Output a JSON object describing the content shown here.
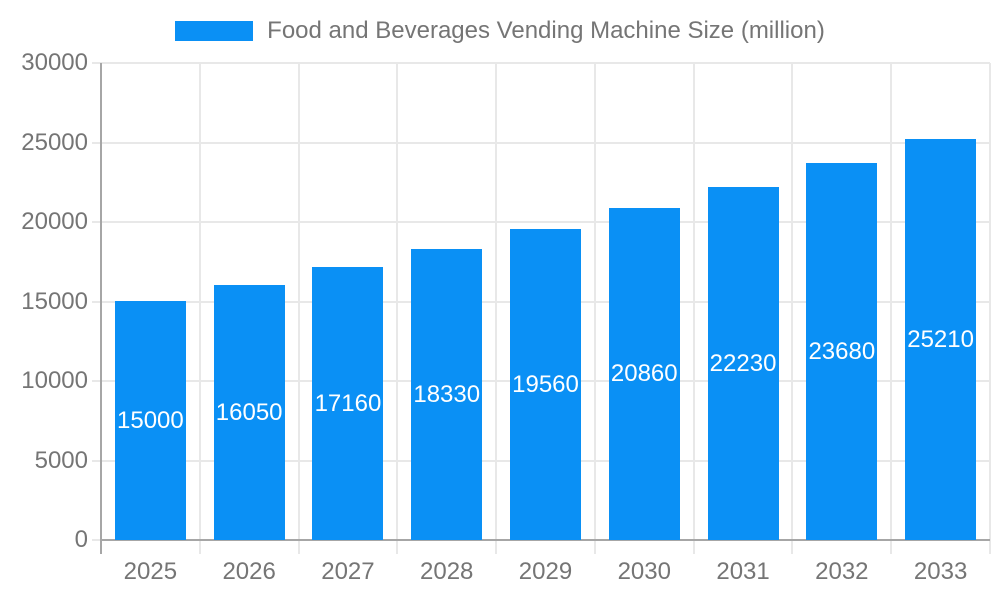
{
  "chart_data": {
    "type": "bar",
    "title": "Food and Beverages Vending Machine Size (million)",
    "categories": [
      "2025",
      "2026",
      "2027",
      "2028",
      "2029",
      "2030",
      "2031",
      "2032",
      "2033"
    ],
    "values": [
      15000,
      16050,
      17160,
      18330,
      19560,
      20860,
      22230,
      23680,
      25210
    ],
    "xlabel": "",
    "ylabel": "",
    "ylim": [
      0,
      30000
    ],
    "ytick_step": 5000,
    "ytick_labels": [
      "0",
      "5000",
      "10000",
      "15000",
      "20000",
      "25000",
      "30000"
    ],
    "grid": true,
    "legend_position": "top",
    "bar_label_position": "inside-center",
    "colors": {
      "bar": "#0a90f5",
      "bar_label_text": "#ffffff",
      "grid": "#e8e8e8",
      "axis": "#a6a6a6",
      "tick_text": "#757575",
      "legend_text": "#757575"
    }
  }
}
